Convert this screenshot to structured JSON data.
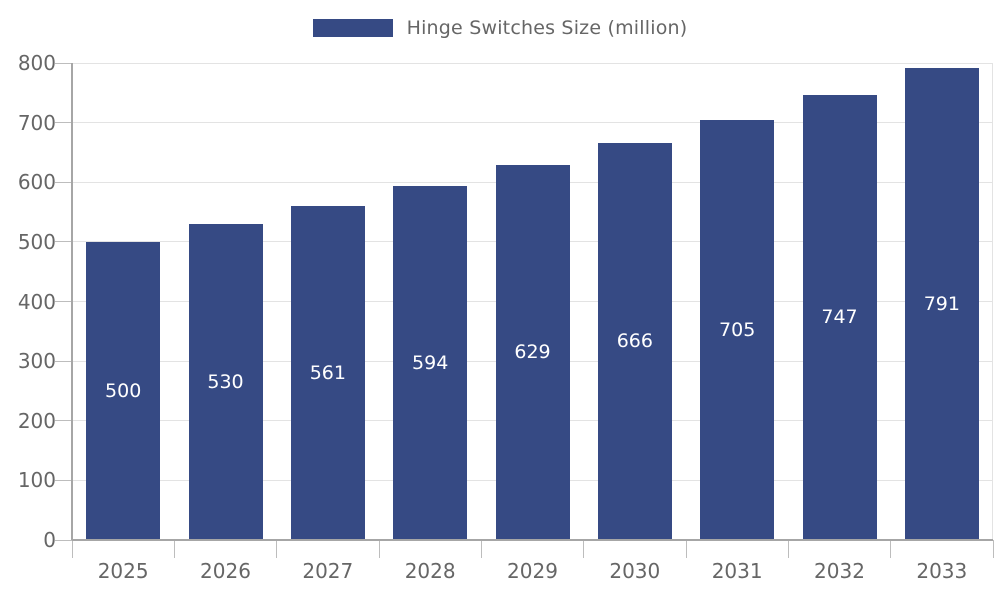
{
  "colors": {
    "bar": "#364a84",
    "text_muted": "#666666",
    "grid": "#e3e3e3",
    "axis": "#a6a6a6",
    "tick": "#bdbdbd",
    "value_label": "#ffffff"
  },
  "chart_data": {
    "type": "bar",
    "title": "",
    "legend": "Hinge Switches Size (million)",
    "legend_position": "top",
    "categories": [
      "2025",
      "2026",
      "2027",
      "2028",
      "2029",
      "2030",
      "2031",
      "2032",
      "2033"
    ],
    "values": [
      500,
      530,
      561,
      594,
      629,
      666,
      705,
      747,
      791
    ],
    "xlabel": "",
    "ylabel": "",
    "ylim": [
      0,
      800
    ],
    "yticks": [
      0,
      100,
      200,
      300,
      400,
      500,
      600,
      700,
      800
    ],
    "grid": true,
    "bar_labels": true
  }
}
